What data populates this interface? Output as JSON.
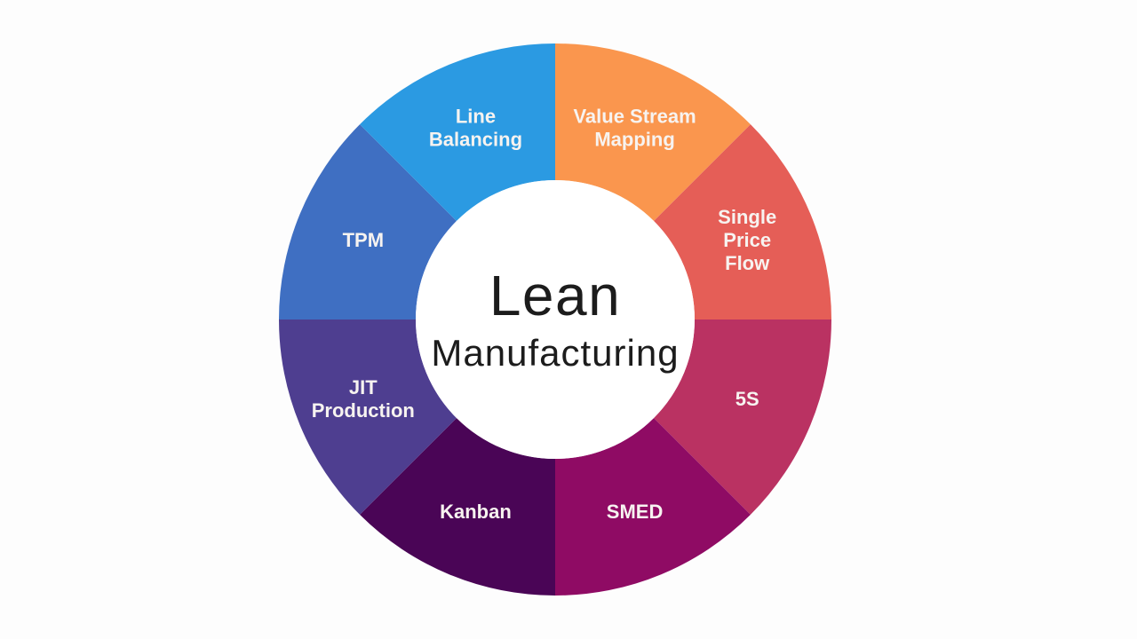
{
  "title": {
    "line1": "Lean",
    "line2": "Manufacturing"
  },
  "colors": {
    "background": "#fdfdfd",
    "center_circle": "#ffffff",
    "center_text": "#1c1c1c",
    "segment_label_text": "#f7f3f0"
  },
  "chart_data": {
    "type": "pie",
    "subtype": "donut",
    "title": "Lean Manufacturing",
    "legend_position": "none",
    "labels_on_slices": true,
    "equal_slices": true,
    "start_at": "12-oclock",
    "direction": "clockwise",
    "segments": [
      {
        "label": "Value Stream Mapping",
        "label_lines": [
          "Value Stream",
          "Mapping"
        ],
        "value": 1,
        "color": "#FA964E"
      },
      {
        "label": "Single Price Flow",
        "label_lines": [
          "Single",
          "Price",
          "Flow"
        ],
        "value": 1,
        "color": "#E55E57"
      },
      {
        "label": "5S",
        "label_lines": [
          "5S"
        ],
        "value": 1,
        "color": "#BA3262"
      },
      {
        "label": "SMED",
        "label_lines": [
          "SMED"
        ],
        "value": 1,
        "color": "#8F0B64"
      },
      {
        "label": "Kanban",
        "label_lines": [
          "Kanban"
        ],
        "value": 1,
        "color": "#4A0556"
      },
      {
        "label": "JIT Production",
        "label_lines": [
          "JIT",
          "Production"
        ],
        "value": 1,
        "color": "#4E3E90"
      },
      {
        "label": "TPM",
        "label_lines": [
          "TPM"
        ],
        "value": 1,
        "color": "#3F6FC2"
      },
      {
        "label": "Line Balancing",
        "label_lines": [
          "Line",
          "Balancing"
        ],
        "value": 1,
        "color": "#2B9AE2"
      }
    ]
  }
}
